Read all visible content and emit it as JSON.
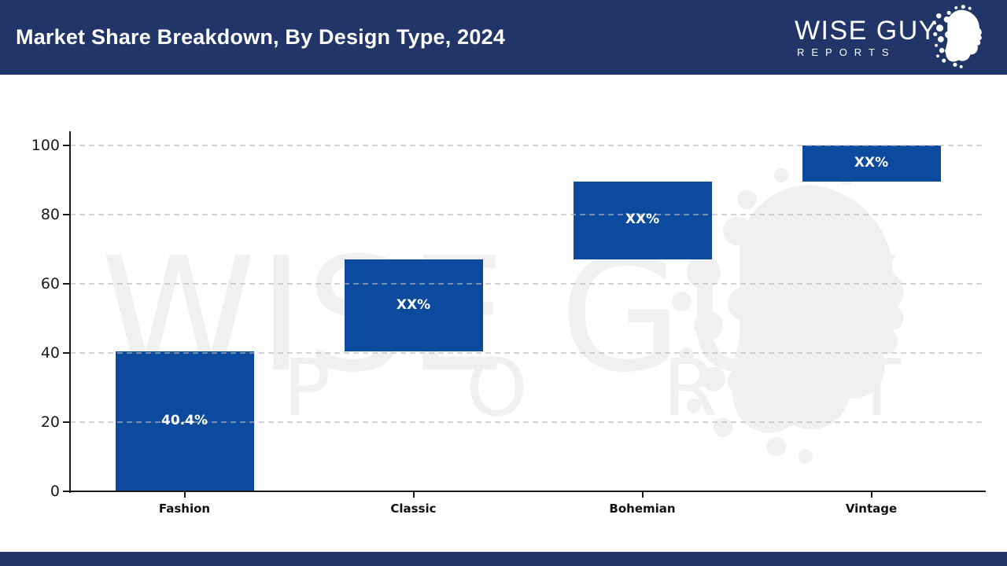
{
  "header": {
    "title": "Market Share Breakdown, By Design Type, 2024",
    "logo_line1": "WISE GUY",
    "logo_line2": "REPORTS"
  },
  "watermark": {
    "line1": "WISE GUY",
    "line2": "P O R T S"
  },
  "chart_data": {
    "type": "bar",
    "subtype": "waterfall",
    "title": "Market Share Breakdown, By Design Type, 2024",
    "categories": [
      "Fashion",
      "Classic",
      "Bohemian",
      "Vintage"
    ],
    "bars": [
      {
        "category": "Fashion",
        "start": 0,
        "end": 40.4,
        "label": "40.4%"
      },
      {
        "category": "Classic",
        "start": 40.4,
        "end": 67.1,
        "label": "XX%"
      },
      {
        "category": "Bohemian",
        "start": 67.1,
        "end": 89.6,
        "label": "XX%"
      },
      {
        "category": "Vintage",
        "start": 89.6,
        "end": 100,
        "label": "XX%"
      }
    ],
    "ylim": [
      0,
      100
    ],
    "yticks": [
      0,
      20,
      40,
      60,
      80,
      100
    ],
    "xlabel": "",
    "ylabel": "",
    "grid": "horizontal-dashed",
    "legend": "none",
    "bar_color": "#0b4a9c",
    "colors": {
      "header_bg": "#213568",
      "footer_bg": "#213568",
      "axis": "#1a1a1a",
      "gridline": "#d9d9d9",
      "watermark": "#f0f0f0",
      "title_text": "#ffffff",
      "bar_label_text": "#ffffff"
    }
  }
}
